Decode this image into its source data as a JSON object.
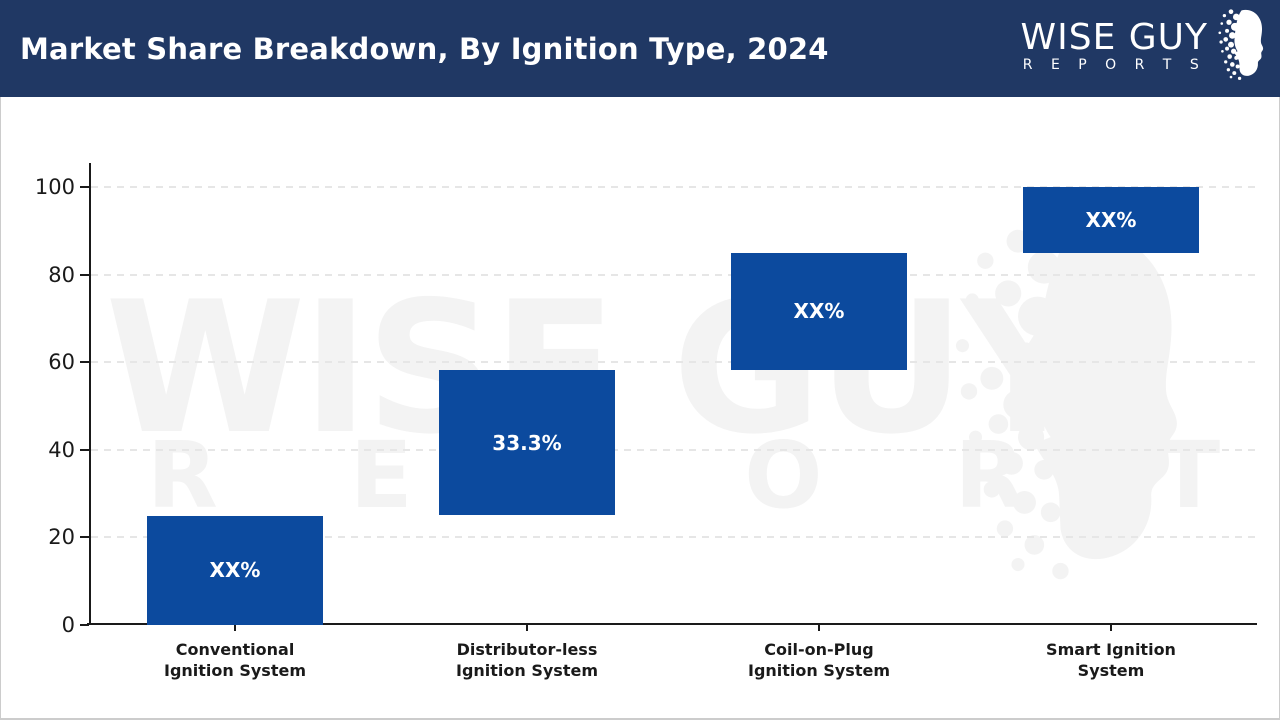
{
  "header": {
    "title": "Market Share Breakdown, By Ignition Type, 2024",
    "brand": {
      "wordmark": "WISE GUY",
      "reports": "R E P O R T S"
    }
  },
  "watermark": {
    "wordmark": "WISE GUY",
    "reports": "R E P O R T S"
  },
  "chart_data": {
    "type": "bar",
    "subtype": "waterfall-floating-bars",
    "title": "Market Share Breakdown, By Ignition Type, 2024",
    "categories": [
      "Conventional Ignition System",
      "Distributor-less Ignition System",
      "Coil-on-Plug Ignition System",
      "Smart Ignition System"
    ],
    "category_lines": [
      [
        "Conventional",
        "Ignition System"
      ],
      [
        "Distributor-less",
        "Ignition System"
      ],
      [
        "Coil-on-Plug",
        "Ignition System"
      ],
      [
        "Smart Ignition",
        "System"
      ]
    ],
    "bars": [
      {
        "category": "Conventional Ignition System",
        "start": 0,
        "end": 25,
        "value_label": "XX%"
      },
      {
        "category": "Distributor-less Ignition System",
        "start": 25,
        "end": 58.3,
        "value_label": "33.3%"
      },
      {
        "category": "Coil-on-Plug Ignition System",
        "start": 58.3,
        "end": 85,
        "value_label": "XX%"
      },
      {
        "category": "Smart Ignition System",
        "start": 85,
        "end": 100,
        "value_label": "XX%"
      }
    ],
    "xlabel": "",
    "ylabel": "",
    "ylim": [
      0,
      100
    ],
    "yticks": [
      0,
      20,
      40,
      60,
      80,
      100
    ],
    "grid": "horizontal-dashed",
    "legend": "none",
    "colors": {
      "bar": "#0c4a9e",
      "bar_label": "#ffffff",
      "header_bg": "#203864",
      "axis": "#1a1a1a",
      "gridline": "#e6e6e6",
      "watermark": "#f3f3f3",
      "border": "#cccccc"
    }
  }
}
